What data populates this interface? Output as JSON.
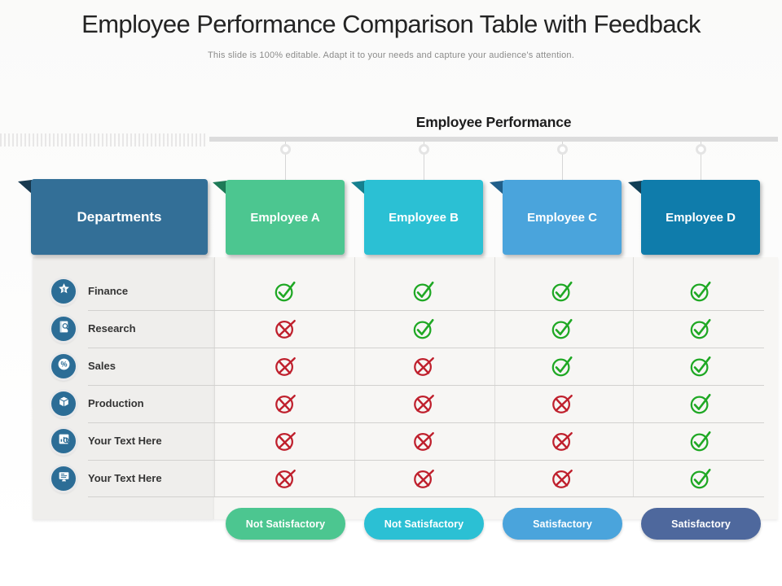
{
  "title": "Employee Performance Comparison Table with Feedback",
  "subtitle": "This slide is 100% editable. Adapt it to your needs and capture your audience's attention.",
  "section_heading": "Employee Performance",
  "table": {
    "row_header_label": "Departments",
    "row_header_color": "#336f97",
    "row_header_fold_color": "#17394f",
    "rows": [
      {
        "label": "Finance",
        "icon": "star-dollar-icon"
      },
      {
        "label": "Research",
        "icon": "book-magnifier-icon"
      },
      {
        "label": "Sales",
        "icon": "percent-badge-icon"
      },
      {
        "label": "Production",
        "icon": "package-box-icon"
      },
      {
        "label": "Your Text Here",
        "icon": "chart-magnifier-icon"
      },
      {
        "label": "Your Text Here",
        "icon": "monitor-icon"
      }
    ],
    "columns": [
      {
        "label": "Employee A",
        "color": "#4cc690",
        "fold_color": "#1e7a57",
        "marks": [
          "check",
          "cross",
          "cross",
          "cross",
          "cross",
          "cross"
        ],
        "verdict": "Not Satisfactory",
        "verdict_color": "#4cc690"
      },
      {
        "label": "Employee B",
        "color": "#2bc0d4",
        "fold_color": "#15808f",
        "marks": [
          "check",
          "check",
          "cross",
          "cross",
          "cross",
          "cross"
        ],
        "verdict": "Not Satisfactory",
        "verdict_color": "#2bc0d4"
      },
      {
        "label": "Employee C",
        "color": "#4aa4dc",
        "fold_color": "#205f8a",
        "marks": [
          "check",
          "check",
          "check",
          "cross",
          "cross",
          "cross"
        ],
        "verdict": "Satisfactory",
        "verdict_color": "#4aa4dc"
      },
      {
        "label": "Employee D",
        "color": "#0f7cab",
        "fold_color": "#113f56",
        "marks": [
          "check",
          "check",
          "check",
          "check",
          "check",
          "check"
        ],
        "verdict": "Satisfactory",
        "verdict_color": "#4e689d"
      }
    ]
  },
  "marks": {
    "check_color": "#1fa824",
    "cross_color": "#bf1f2c"
  }
}
